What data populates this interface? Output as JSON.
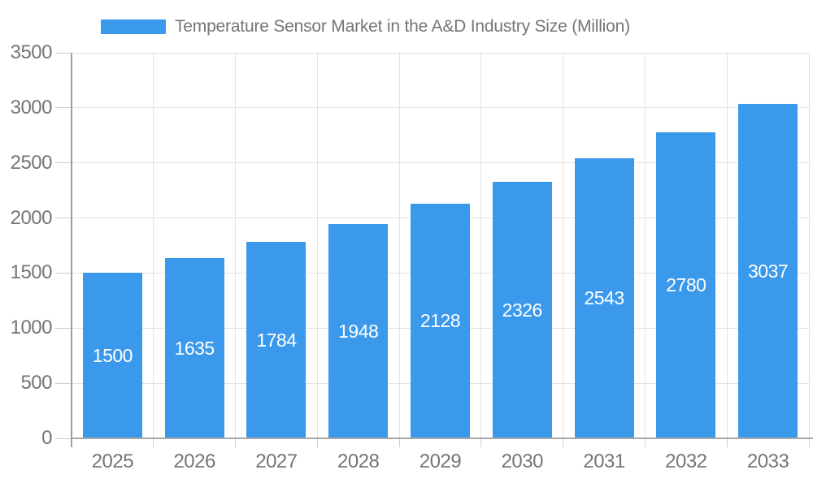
{
  "legend": {
    "series_label": "Temperature Sensor Market in the A&D Industry Size (Million)"
  },
  "chart_data": {
    "type": "bar",
    "title": "Temperature Sensor Market in the A&D Industry Size (Million)",
    "categories": [
      "2025",
      "2026",
      "2027",
      "2028",
      "2029",
      "2030",
      "2031",
      "2032",
      "2033"
    ],
    "values": [
      1500,
      1635,
      1784,
      1948,
      2128,
      2326,
      2543,
      2780,
      3037
    ],
    "xlabel": "",
    "ylabel": "",
    "ylim": [
      0,
      3500
    ],
    "ytick_step": 500,
    "yticks": [
      0,
      500,
      1000,
      1500,
      2000,
      2500,
      3000,
      3500
    ],
    "grid": true,
    "legend_position": "top",
    "value_labels": "inside-center",
    "bar_color": "#3B99EC",
    "value_label_color": "#FFFFFF",
    "axis_label_color": "#757575",
    "gridline_color": "#E3E3E3",
    "axis_line_color": "#9E9E9E"
  }
}
